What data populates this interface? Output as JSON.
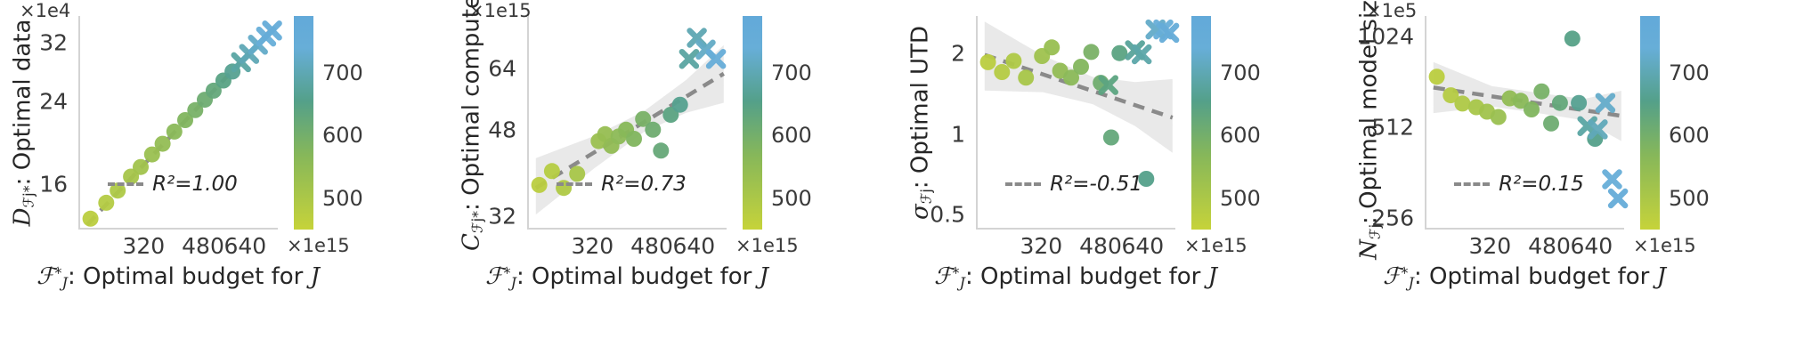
{
  "figure": {
    "xlabel": {
      "f": "ℱ",
      "sup": "*",
      "sub": "J",
      "rest": ": Optimal budget for ",
      "end": "J"
    },
    "x_offset": "×1e15",
    "trend_color": "#8a8a8a",
    "band_color": "#bbbbbb",
    "spine_color": "#d4d4d4",
    "colorbar": {
      "tick_values": [
        700,
        600,
        500
      ],
      "vmin": 450,
      "vmax": 790,
      "stop_pos": [
        0,
        0.35,
        0.6,
        0.85,
        1
      ],
      "stop_colors": [
        "#c6d33a",
        "#86b75a",
        "#54a089",
        "#67aed8",
        "#62a9d9"
      ]
    }
  },
  "chart_data": [
    {
      "type": "scatter",
      "ylabel": {
        "sym": "D",
        "sub": "ℱj*",
        "rest": ": Optimal data"
      },
      "ylabel_text": "𝒟ℱj*: Optimal data",
      "xlabel_text": "ℱ*J: Optimal budget for J",
      "y_offset": "×1e4",
      "x_offset": "×1e15",
      "xscale": "log",
      "yscale": "log",
      "xlim": [
        205,
        800
      ],
      "ylim": [
        12.8,
        36.5
      ],
      "xticks": [
        320,
        480,
        640
      ],
      "yticks": [
        16,
        24,
        32
      ],
      "r2": "R²=1.00",
      "trend": {
        "x": [
          215,
          775
        ],
        "y": [
          13.1,
          34.8
        ]
      },
      "band": null,
      "points": [
        [
          220,
          13.5,
          470,
          "o"
        ],
        [
          245,
          14.6,
          483,
          "o"
        ],
        [
          265,
          15.5,
          494,
          "o"
        ],
        [
          290,
          16.6,
          508,
          "o"
        ],
        [
          310,
          17.4,
          518,
          "o"
        ],
        [
          335,
          18.5,
          532,
          "o"
        ],
        [
          360,
          19.5,
          545,
          "o"
        ],
        [
          390,
          20.7,
          561,
          "o"
        ],
        [
          420,
          21.9,
          577,
          "o"
        ],
        [
          450,
          23.0,
          593,
          "o"
        ],
        [
          480,
          24.2,
          610,
          "o"
        ],
        [
          510,
          25.3,
          626,
          "o"
        ],
        [
          545,
          26.6,
          645,
          "o"
        ],
        [
          580,
          27.8,
          663,
          "o"
        ],
        [
          615,
          29.1,
          682,
          "x"
        ],
        [
          650,
          30.3,
          701,
          "x"
        ],
        [
          690,
          31.7,
          722,
          "x"
        ],
        [
          730,
          33.0,
          744,
          "x"
        ],
        [
          760,
          34.0,
          760,
          "x"
        ]
      ]
    },
    {
      "type": "scatter",
      "ylabel": {
        "sym": "C",
        "sub": "ℱj*",
        "rest": ": Optimal compute"
      },
      "ylabel_text": "𝒞ℱj*: Optimal compute",
      "xlabel_text": "ℱ*J: Optimal budget for J",
      "y_offset": "×1e15",
      "x_offset": "×1e15",
      "xscale": "log",
      "yscale": "log",
      "xlim": [
        205,
        800
      ],
      "ylim": [
        30,
        82
      ],
      "xticks": [
        320,
        480,
        640
      ],
      "yticks": [
        32,
        48,
        64
      ],
      "r2": "R²=0.73",
      "trend": {
        "x": [
          215,
          775
        ],
        "y": [
          36.5,
          62.5
        ]
      },
      "band": {
        "x": [
          215,
          320,
          450,
          600,
          775
        ],
        "lo": [
          32.2,
          40.0,
          47.5,
          52.0,
          54.5
        ],
        "hi": [
          42.0,
          46.6,
          52.4,
          60.7,
          71.5
        ]
      },
      "points": [
        [
          220,
          37.0,
          470,
          "o"
        ],
        [
          240,
          39.5,
          481,
          "o"
        ],
        [
          260,
          36.5,
          492,
          "o"
        ],
        [
          285,
          39.0,
          505,
          "o"
        ],
        [
          330,
          45.5,
          530,
          "o"
        ],
        [
          345,
          47.0,
          538,
          "o"
        ],
        [
          360,
          44.5,
          547,
          "o"
        ],
        [
          378,
          46.5,
          556,
          "o"
        ],
        [
          398,
          48.0,
          566,
          "o"
        ],
        [
          420,
          46.0,
          577,
          "o"
        ],
        [
          447,
          50.5,
          591,
          "o"
        ],
        [
          478,
          48.0,
          608,
          "o"
        ],
        [
          505,
          43.5,
          623,
          "o"
        ],
        [
          540,
          51.5,
          642,
          "o"
        ],
        [
          575,
          54.0,
          660,
          "o"
        ],
        [
          612,
          67.0,
          680,
          "x"
        ],
        [
          645,
          74.0,
          698,
          "x"
        ],
        [
          685,
          70.0,
          719,
          "x"
        ],
        [
          735,
          67.0,
          746,
          "x"
        ]
      ]
    },
    {
      "type": "scatter",
      "ylabel": {
        "sym": "σ",
        "sub": "ℱj",
        "rest": ": Optimal UTD"
      },
      "ylabel_text": "σℱj: Optimal UTD",
      "xlabel_text": "ℱ*J: Optimal budget for J",
      "y_offset": null,
      "x_offset": "×1e15",
      "xscale": "log",
      "yscale": "log",
      "xlim": [
        205,
        800
      ],
      "ylim": [
        0.44,
        2.75
      ],
      "xticks": [
        320,
        480,
        640
      ],
      "yticks": [
        0.5,
        1,
        2
      ],
      "r2": "R²=-0.51",
      "trend": {
        "x": [
          215,
          775
        ],
        "y": [
          1.97,
          1.15
        ]
      },
      "band": {
        "x": [
          215,
          320,
          450,
          600,
          775
        ],
        "lo": [
          1.45,
          1.43,
          1.29,
          1.07,
          0.85
        ],
        "hi": [
          2.62,
          1.96,
          1.63,
          1.56,
          1.6
        ]
      },
      "points": [
        [
          220,
          1.85,
          470,
          "o"
        ],
        [
          242,
          1.7,
          482,
          "o"
        ],
        [
          262,
          1.87,
          493,
          "o"
        ],
        [
          285,
          1.62,
          505,
          "o"
        ],
        [
          318,
          1.95,
          523,
          "o"
        ],
        [
          340,
          2.1,
          535,
          "o"
        ],
        [
          360,
          1.72,
          547,
          "o"
        ],
        [
          388,
          1.62,
          560,
          "o"
        ],
        [
          415,
          1.78,
          574,
          "o"
        ],
        [
          445,
          2.02,
          590,
          "o"
        ],
        [
          475,
          1.55,
          606,
          "o"
        ],
        [
          500,
          1.52,
          640,
          "x"
        ],
        [
          510,
          0.97,
          626,
          "o"
        ],
        [
          540,
          2.0,
          642,
          "o"
        ],
        [
          600,
          2.05,
          672,
          "x"
        ],
        [
          628,
          1.98,
          688,
          "x"
        ],
        [
          648,
          0.68,
          655,
          "o"
        ],
        [
          690,
          2.45,
          722,
          "x"
        ],
        [
          728,
          2.45,
          743,
          "x"
        ],
        [
          758,
          2.38,
          760,
          "x"
        ]
      ]
    },
    {
      "type": "scatter",
      "ylabel": {
        "sym": "N",
        "sub": "ℱj",
        "rest": ": Optimal model size"
      },
      "ylabel_text": "Nℱj: Optimal model size",
      "xlabel_text": "ℱ*J: Optimal budget for J",
      "y_offset": "×1e5",
      "x_offset": "×1e15",
      "xscale": "log",
      "yscale": "log",
      "xlim": [
        205,
        800
      ],
      "ylim": [
        235,
        1200
      ],
      "xticks": [
        320,
        480,
        640
      ],
      "yticks": [
        256,
        512,
        1024
      ],
      "r2": "R²=0.15",
      "trend": {
        "x": [
          215,
          775
        ],
        "y": [
          695,
          560
        ]
      },
      "band": {
        "x": [
          215,
          320,
          450,
          600,
          775
        ],
        "lo": [
          572,
          601,
          569,
          541,
          462
        ],
        "hi": [
          844,
          703,
          665,
          637,
          678
        ]
      },
      "points": [
        [
          220,
          755,
          470,
          "o"
        ],
        [
          242,
          655,
          482,
          "o"
        ],
        [
          262,
          615,
          493,
          "o"
        ],
        [
          288,
          598,
          506,
          "o"
        ],
        [
          310,
          578,
          518,
          "o"
        ],
        [
          335,
          555,
          532,
          "o"
        ],
        [
          362,
          640,
          548,
          "o"
        ],
        [
          390,
          628,
          561,
          "o"
        ],
        [
          420,
          588,
          577,
          "o"
        ],
        [
          450,
          675,
          593,
          "o"
        ],
        [
          480,
          528,
          610,
          "o"
        ],
        [
          510,
          618,
          626,
          "o"
        ],
        [
          555,
          1010,
          650,
          "o"
        ],
        [
          580,
          618,
          663,
          "o"
        ],
        [
          615,
          518,
          682,
          "x"
        ],
        [
          648,
          470,
          655,
          "o"
        ],
        [
          660,
          505,
          706,
          "x"
        ],
        [
          695,
          618,
          724,
          "x"
        ],
        [
          728,
          345,
          744,
          "x"
        ],
        [
          758,
          298,
          760,
          "x"
        ]
      ]
    }
  ]
}
